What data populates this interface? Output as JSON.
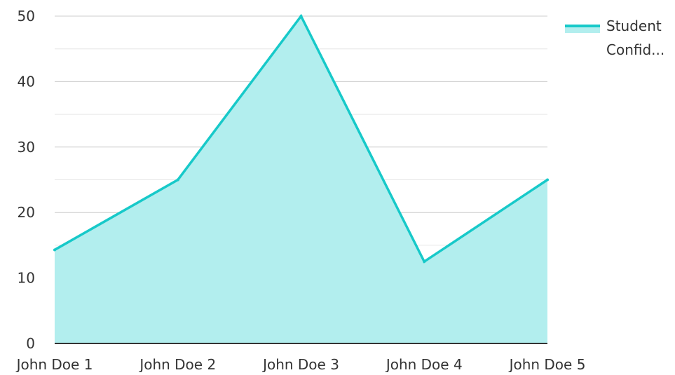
{
  "chart_data": {
    "type": "area",
    "categories": [
      "John Doe 1",
      "John Doe 2",
      "John Doe 3",
      "John Doe 4",
      "John Doe 5"
    ],
    "series": [
      {
        "name": "Student Confid...",
        "values": [
          14.3,
          25,
          50,
          12.5,
          25
        ]
      }
    ],
    "ylim": [
      0,
      50
    ],
    "yticks": [
      0,
      10,
      20,
      30,
      40,
      50
    ],
    "grid": true,
    "legend_position": "top-right",
    "colors": {
      "line": "#17c9c9",
      "fill": "#b2eeee",
      "grid_major": "#cccccc",
      "grid_minor": "#e6e6e6",
      "axis": "#333333"
    }
  },
  "legend": {
    "line1": "Student",
    "line2": "Confid..."
  }
}
